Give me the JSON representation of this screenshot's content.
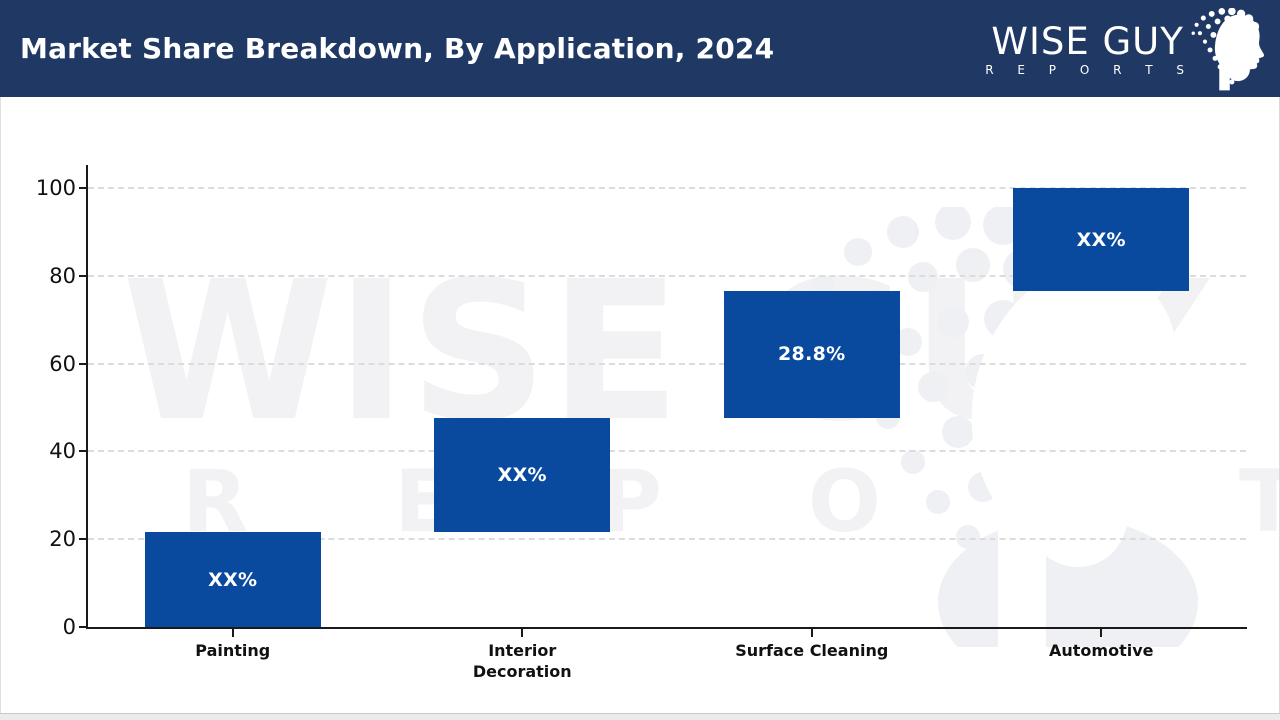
{
  "header": {
    "title": "Market Share Breakdown, By Application, 2024",
    "bg_color": "#1f3864",
    "logo": {
      "line1": "WISE GUY",
      "line2": "R E P O R T S",
      "icon": "face-dots-logo"
    }
  },
  "watermark": {
    "line1": "WISE GUY",
    "line2": "R E P O R T S"
  },
  "chart_data": {
    "type": "bar",
    "subtype": "waterfall",
    "title": "Market Share Breakdown, By Application, 2024",
    "categories": [
      "Painting",
      "Interior\nDecoration",
      "Surface Cleaning",
      "Automotive"
    ],
    "segments": [
      {
        "category": "Painting",
        "start": 0,
        "end": 21.6,
        "value": 21.6,
        "label": "XX%"
      },
      {
        "category": "Interior Decoration",
        "start": 21.6,
        "end": 47.7,
        "value": 26.1,
        "label": "XX%"
      },
      {
        "category": "Surface Cleaning",
        "start": 47.7,
        "end": 76.5,
        "value": 28.8,
        "label": "28.8%"
      },
      {
        "category": "Automotive",
        "start": 76.5,
        "end": 100,
        "value": 23.5,
        "label": "XX%"
      }
    ],
    "xlabel": "",
    "ylabel": "",
    "ylim": [
      0,
      100
    ],
    "yticks": [
      0,
      20,
      40,
      60,
      80,
      100
    ],
    "grid": "horizontal-dashed",
    "legend": "none",
    "bar_color": "#0a4a9e",
    "bar_label_color": "#ffffff",
    "axis_color": "#1a1a1a",
    "grid_color": "#dcdcdc"
  }
}
